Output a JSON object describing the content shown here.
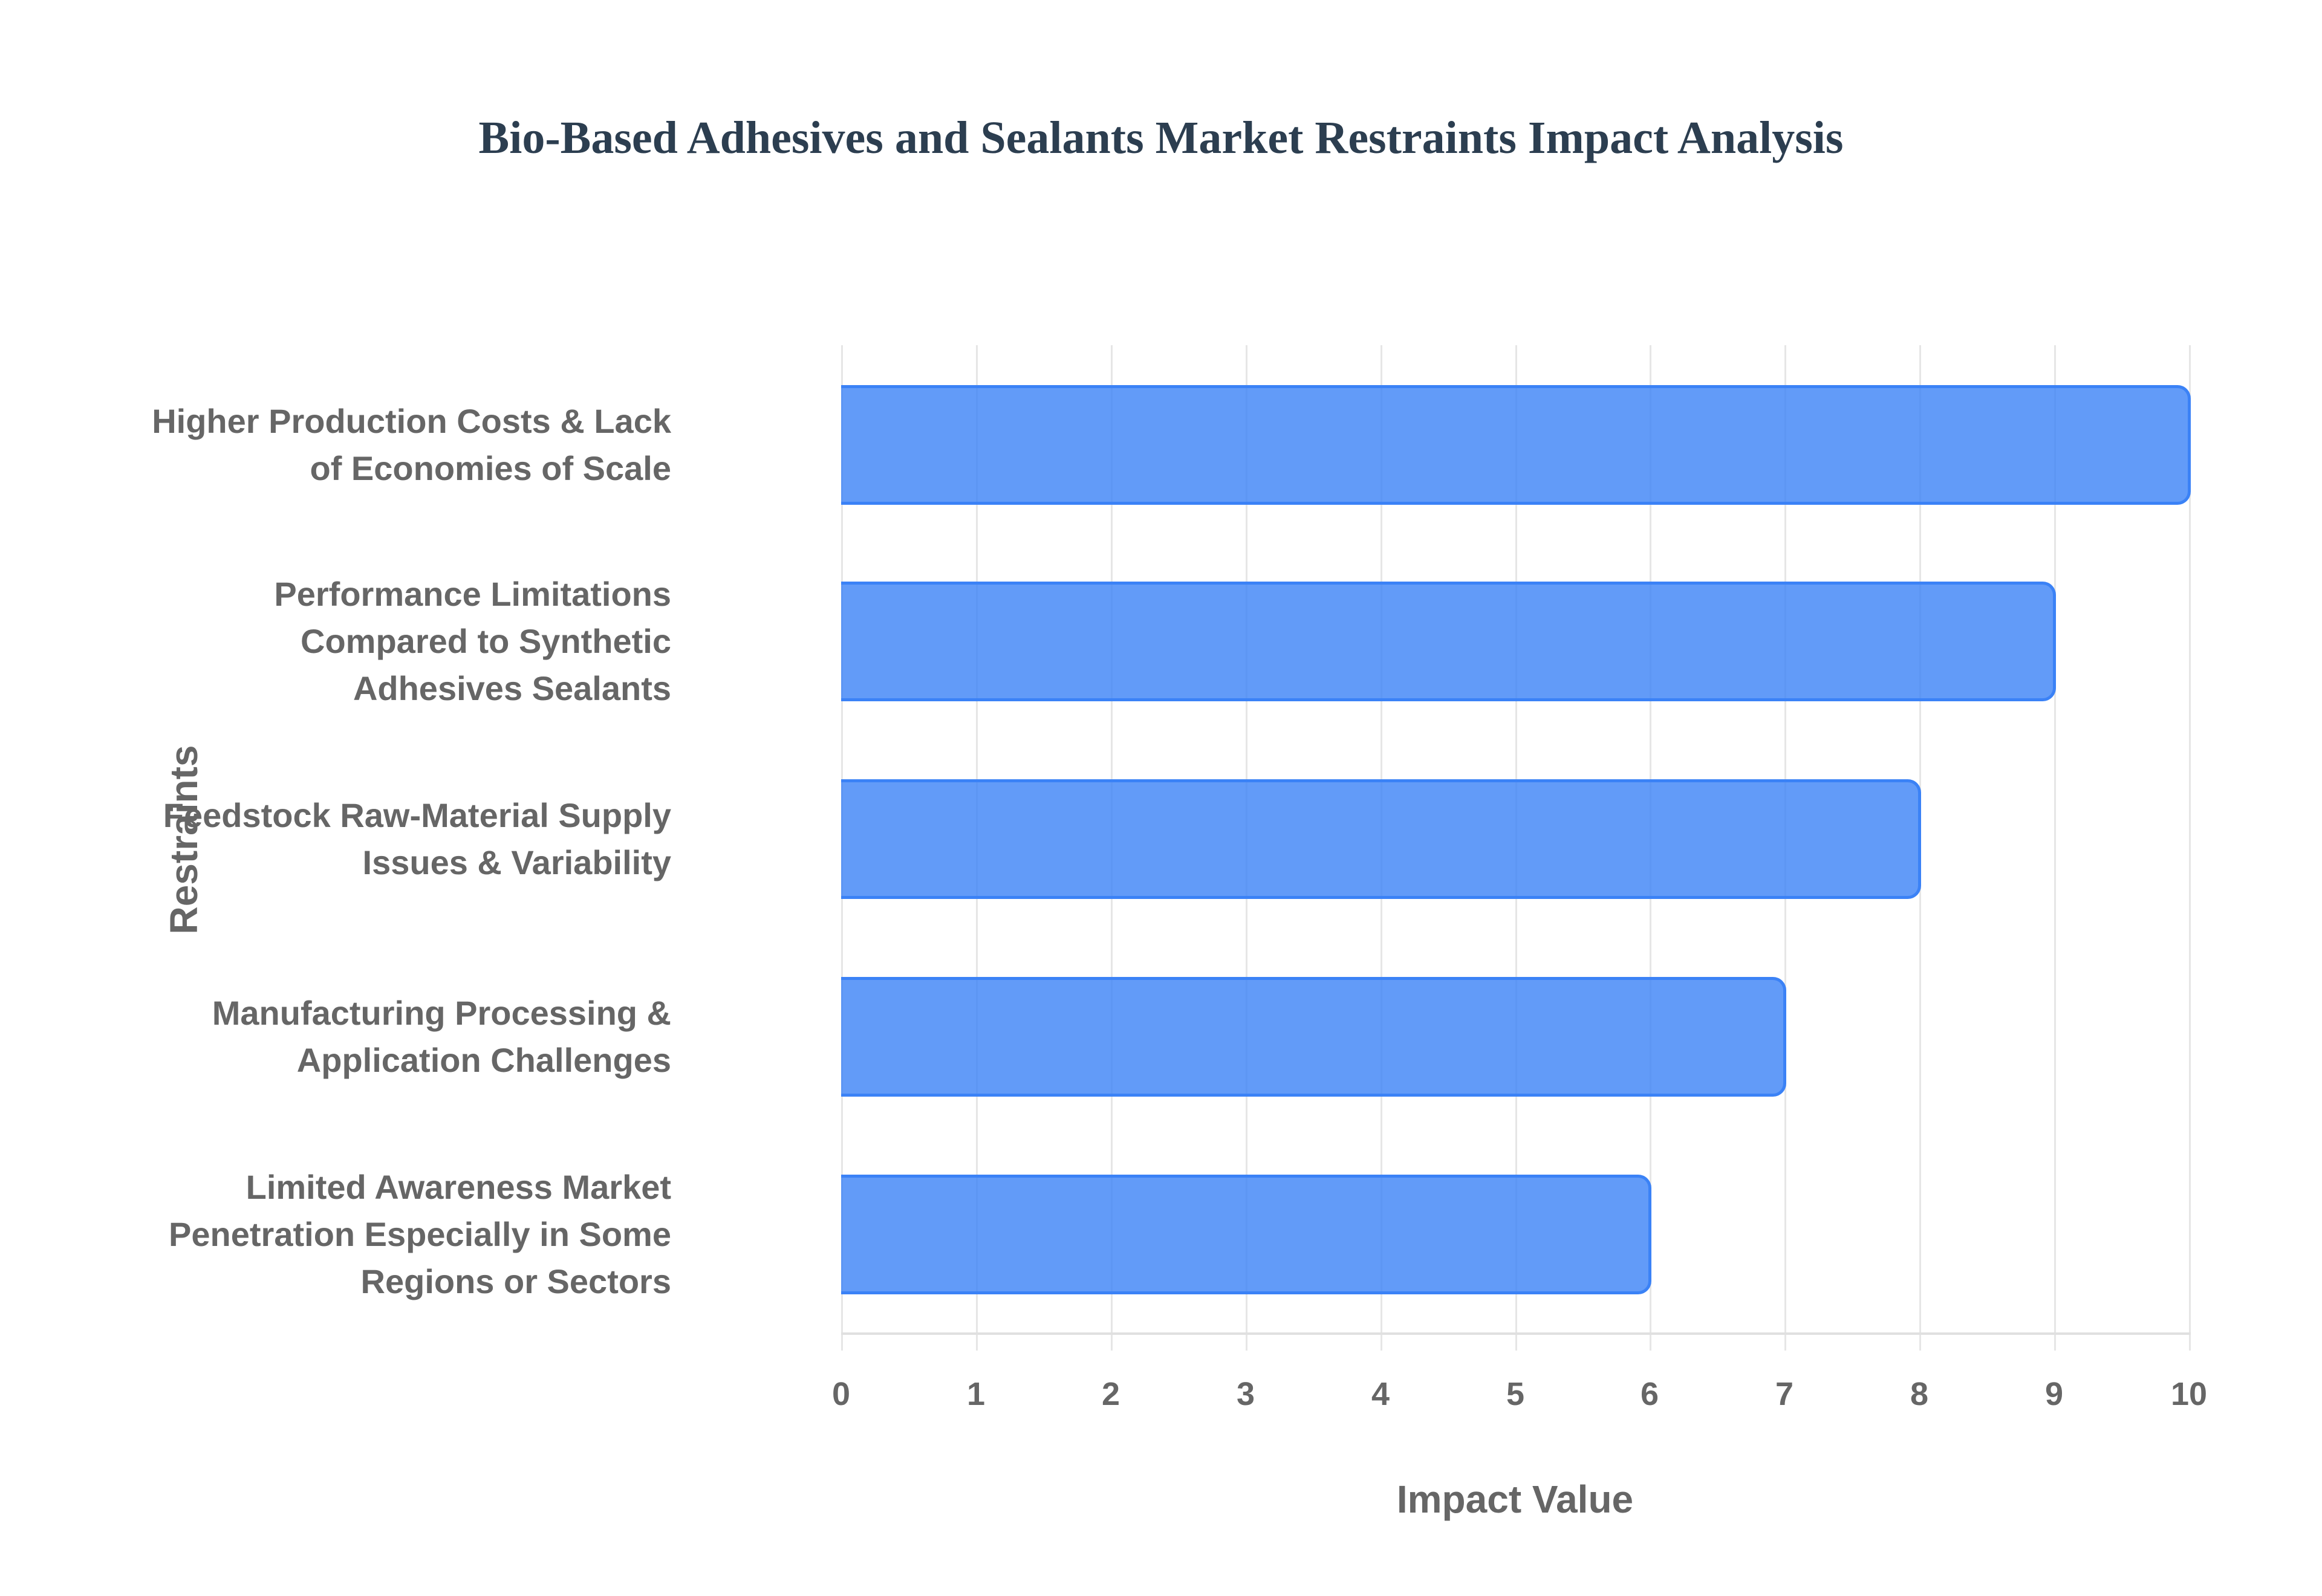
{
  "title": "Bio-Based Adhesives and Sealants Market Restraints Impact Analysis",
  "x_axis_title": "Impact Value",
  "y_axis_title": "Restraints",
  "ticks": [
    "0",
    "1",
    "2",
    "3",
    "4",
    "5",
    "6",
    "7",
    "8",
    "9",
    "10"
  ],
  "bars": [
    {
      "lines": [
        "Higher Production Costs & Lack",
        "of Economies of Scale"
      ],
      "value": 10
    },
    {
      "lines": [
        "Performance Limitations",
        "Compared to Synthetic",
        "Adhesives Sealants"
      ],
      "value": 9
    },
    {
      "lines": [
        "Feedstock Raw-Material Supply",
        "Issues & Variability"
      ],
      "value": 8
    },
    {
      "lines": [
        "Manufacturing Processing &",
        "Application Challenges"
      ],
      "value": 7
    },
    {
      "lines": [
        "Limited Awareness Market",
        "Penetration Especially in Some",
        "Regions or Sectors"
      ],
      "value": 6
    }
  ],
  "colors": {
    "bar_fill": "#6199F5",
    "bar_border": "#3B82F6",
    "title": "#2C3E50",
    "text": "#666666",
    "grid": "#E6E6E6"
  },
  "chart_data": {
    "type": "bar",
    "orientation": "horizontal",
    "title": "Bio-Based Adhesives and Sealants Market Restraints Impact Analysis",
    "xlabel": "Impact Value",
    "ylabel": "Restraints",
    "categories": [
      "Higher Production Costs & Lack of Economies of Scale",
      "Performance Limitations Compared to Synthetic Adhesives Sealants",
      "Feedstock Raw-Material Supply Issues & Variability",
      "Manufacturing Processing & Application Challenges",
      "Limited Awareness Market Penetration Especially in Some Regions or Sectors"
    ],
    "values": [
      10,
      9,
      8,
      7,
      6
    ],
    "xlim": [
      0,
      10
    ],
    "xticks": [
      0,
      1,
      2,
      3,
      4,
      5,
      6,
      7,
      8,
      9,
      10
    ],
    "grid": true,
    "legend": false
  }
}
